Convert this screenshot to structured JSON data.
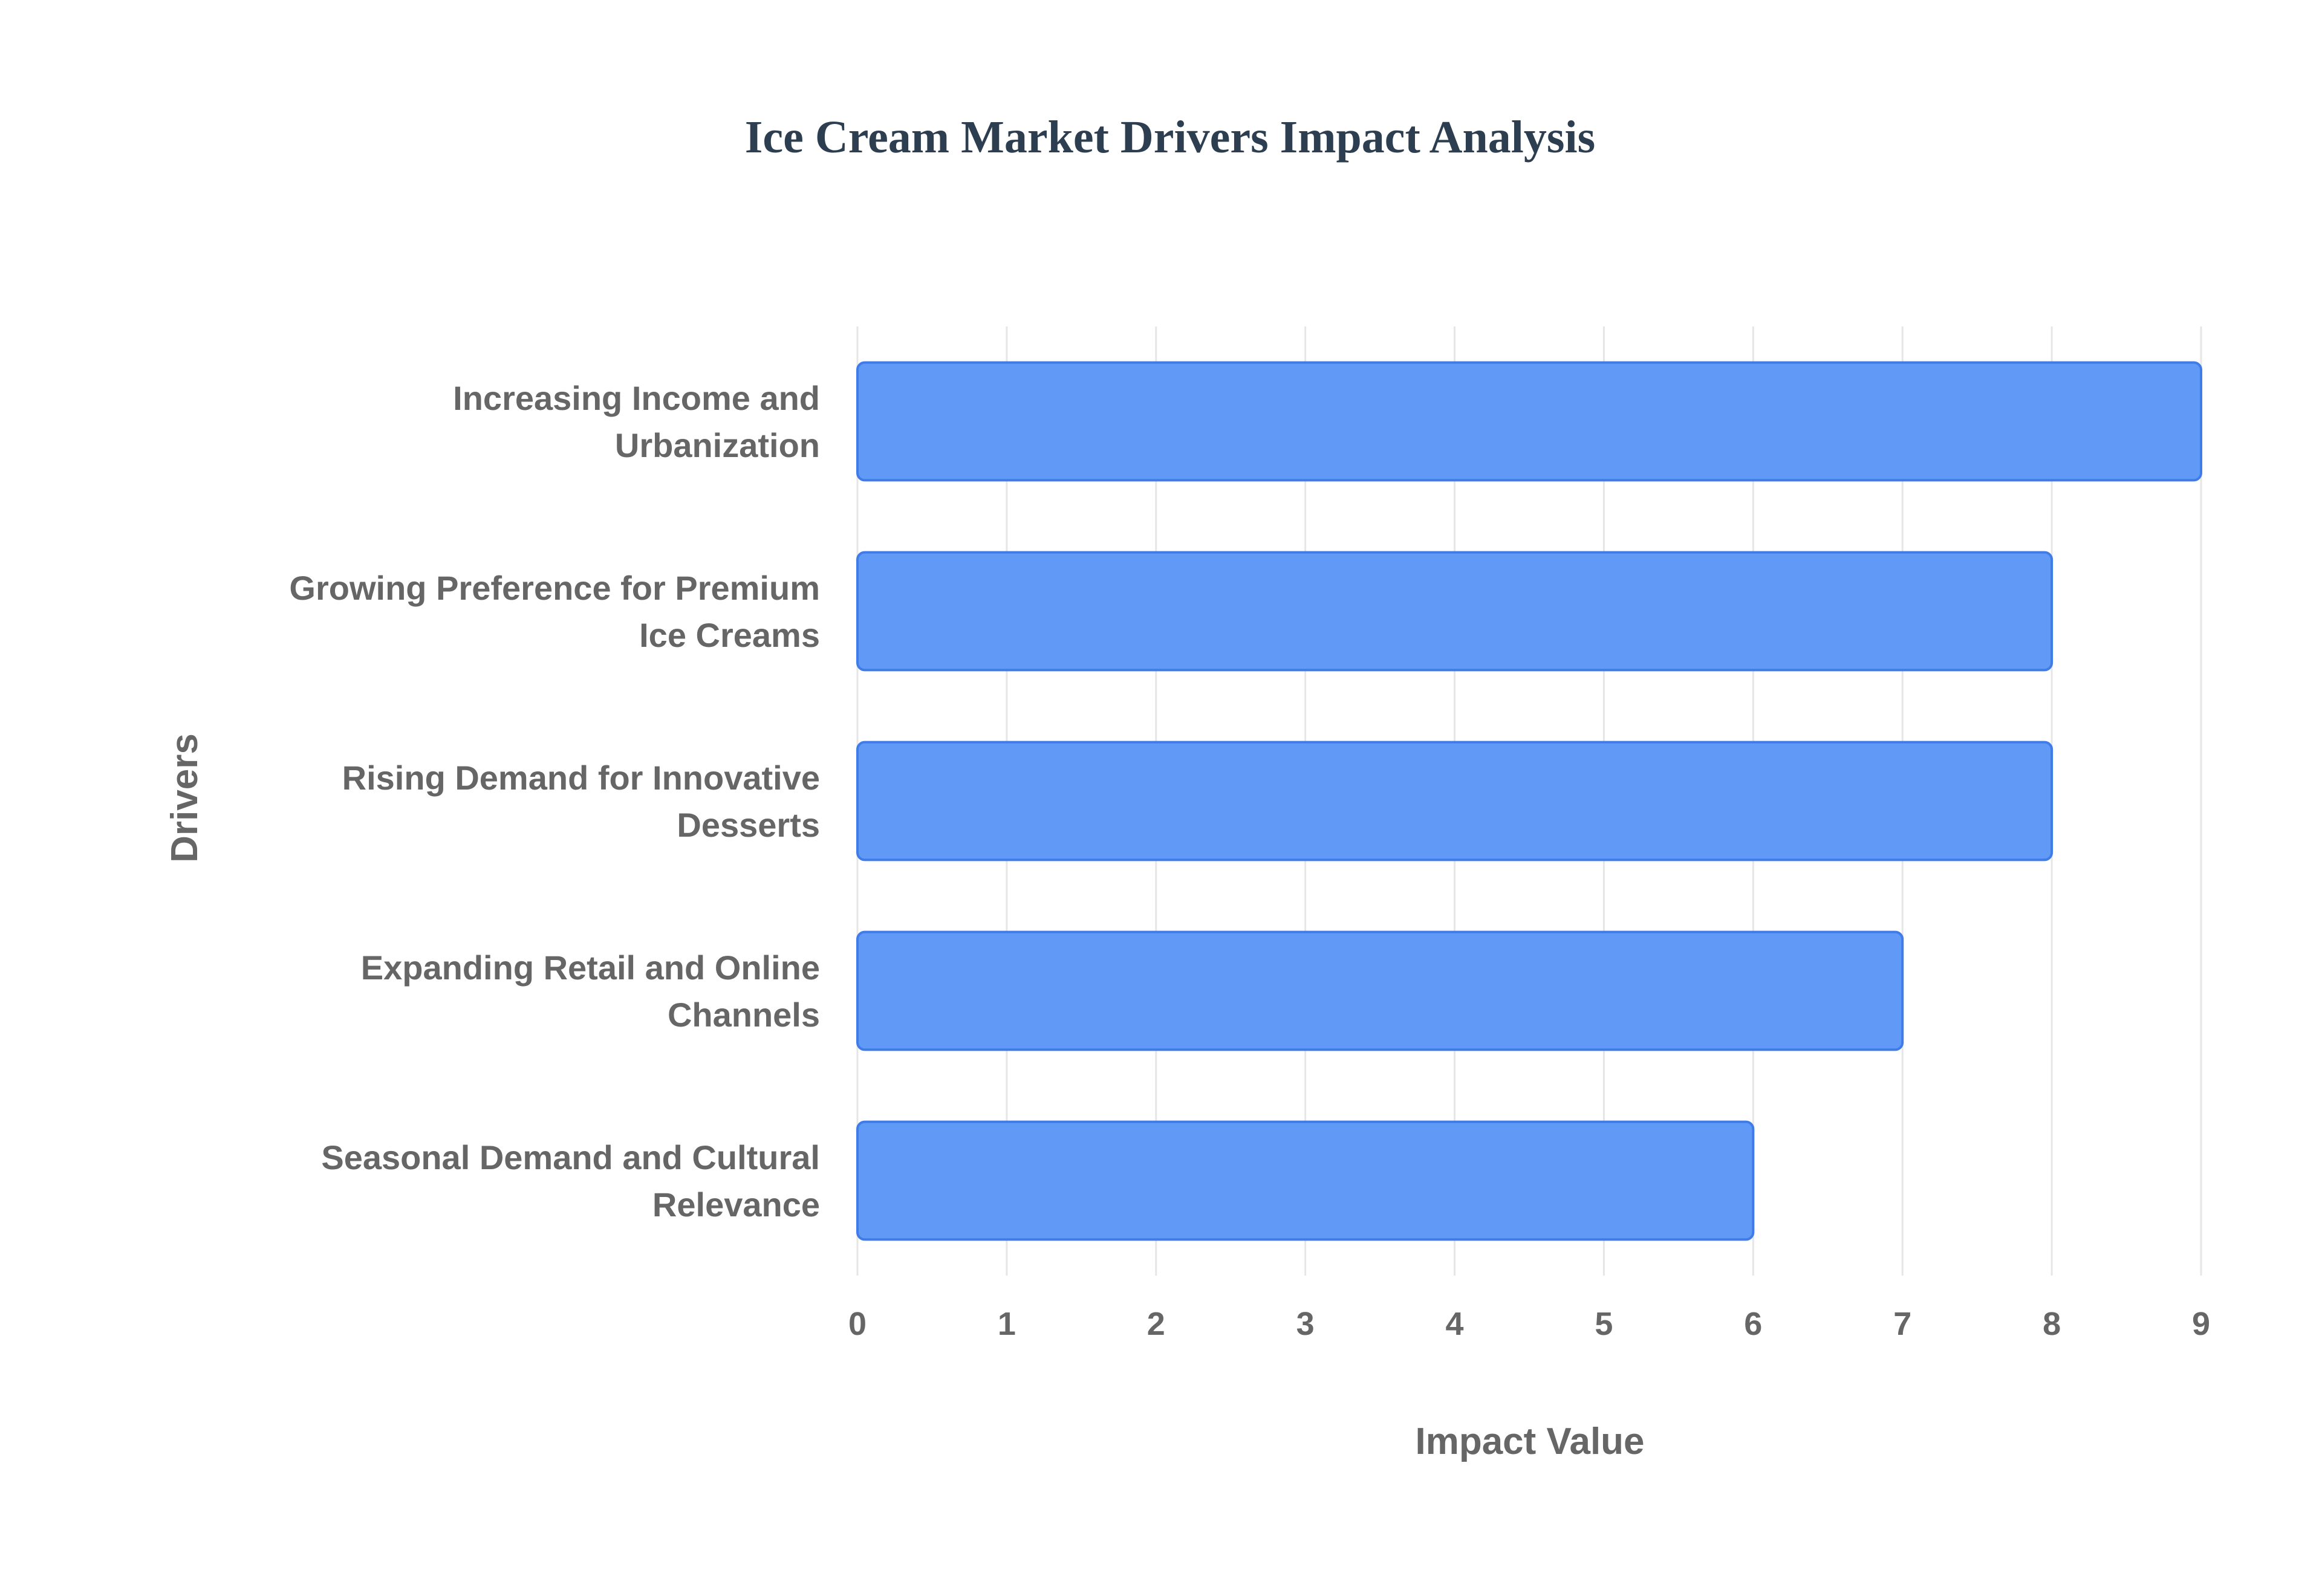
{
  "chart_data": {
    "type": "bar",
    "orientation": "horizontal",
    "title": "Ice Cream Market Drivers Impact Analysis",
    "xlabel": "Impact Value",
    "ylabel": "Drivers",
    "xlim": [
      0,
      9
    ],
    "xticks": [
      0,
      1,
      2,
      3,
      4,
      5,
      6,
      7,
      8,
      9
    ],
    "grid": true,
    "categories": [
      [
        "Increasing Income and",
        "Urbanization"
      ],
      [
        "Growing Preference for Premium",
        "Ice Creams"
      ],
      [
        "Rising Demand for Innovative",
        "Desserts"
      ],
      [
        "Expanding Retail and Online",
        "Channels"
      ],
      [
        "Seasonal Demand and Cultural",
        "Relevance"
      ]
    ],
    "values": [
      9,
      8,
      8,
      7,
      6
    ],
    "colors": {
      "bar_fill": "#6199f6",
      "bar_stroke": "#3f7ce8",
      "title": "#2c3e50",
      "text": "#666666",
      "grid": "#e6e6e6"
    }
  }
}
